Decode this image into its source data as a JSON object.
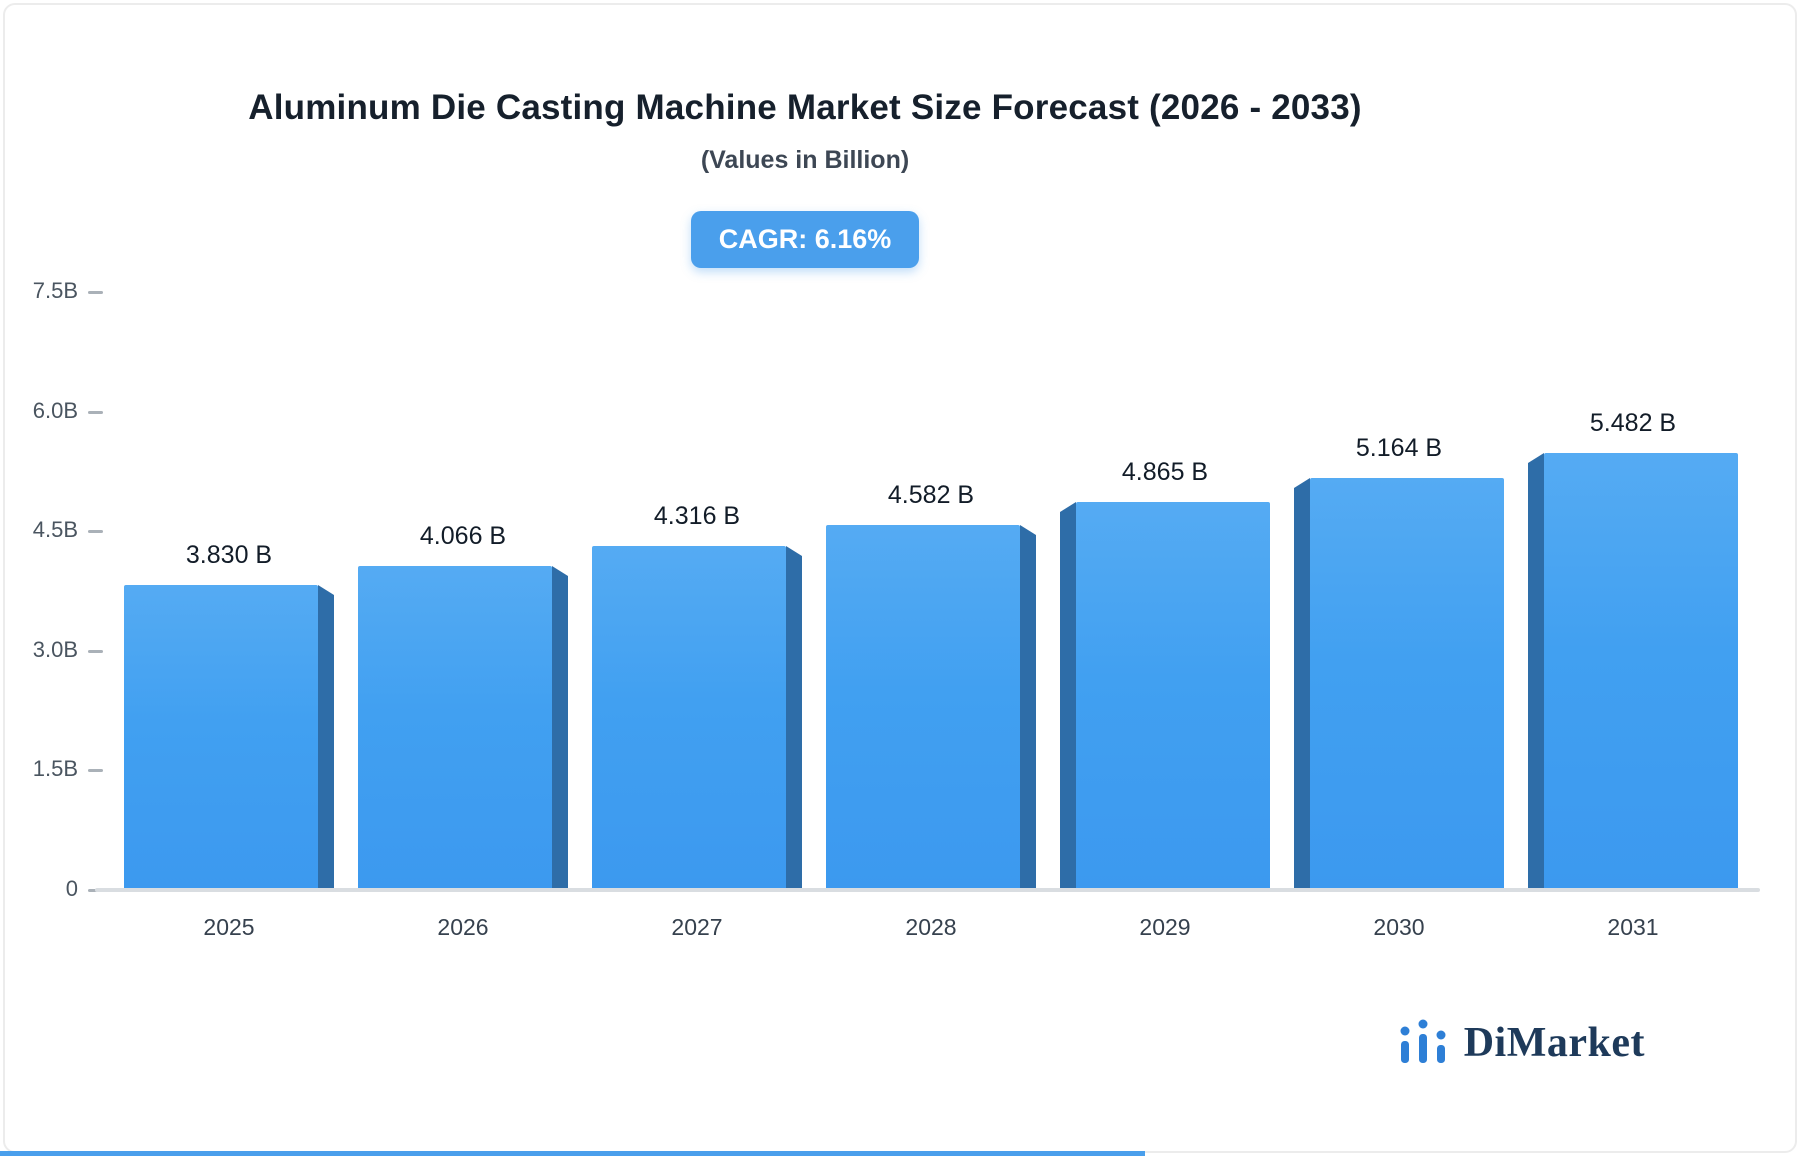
{
  "chart_data": {
    "type": "bar",
    "title": "Aluminum Die Casting Machine Market Size Forecast (2026 - 2033)",
    "subtitle": "(Values in Billion)",
    "cagr_label": "CAGR: 6.16%",
    "categories": [
      "2025",
      "2026",
      "2027",
      "2028",
      "2029",
      "2030",
      "2031"
    ],
    "values": [
      3.83,
      4.066,
      4.316,
      4.582,
      4.865,
      5.164,
      5.482
    ],
    "bar_labels": [
      "3.830 B",
      "4.066 B",
      "4.316 B",
      "4.582 B",
      "4.865 B",
      "5.164 B",
      "5.482 B"
    ],
    "y_ticks": [
      "7.5B",
      "6.0B",
      "4.5B",
      "3.0B",
      "1.5B",
      "0"
    ],
    "y_tick_values": [
      7.5,
      6.0,
      4.5,
      3.0,
      1.5,
      0
    ],
    "ylim": [
      0,
      7.5
    ],
    "xlabel": "",
    "ylabel": "",
    "grid": false,
    "legend": "none",
    "bar_color": "#41a0f1",
    "bar_side_color": "#2e6da8",
    "accent_color": "#4a9fec"
  },
  "branding": {
    "logo_text": "DiMarket",
    "logo_icon": "bar-chart-icon",
    "logo_color": "#1e3a5a",
    "icon_color": "#2e7fd6"
  }
}
